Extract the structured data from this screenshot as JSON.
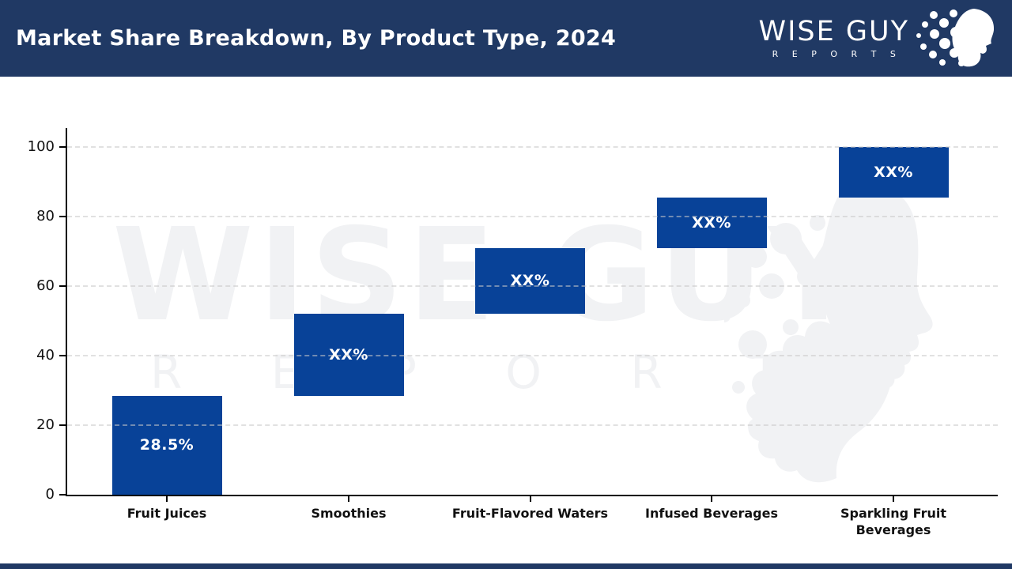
{
  "header": {
    "title": "Market Share Breakdown, By Product Type, 2024",
    "logo": {
      "line1": "WISE GUY",
      "line2": "R E P O R T S"
    }
  },
  "watermark": {
    "line1": "WISE GUY",
    "line2": "R E P O R T S"
  },
  "chart_data": {
    "type": "bar",
    "subtype": "waterfall",
    "title": "Market Share Breakdown, By Product Type, 2024",
    "categories": [
      "Fruit Juices",
      "Smoothies",
      "Fruit-Flavored Waters",
      "Infused Beverages",
      "Sparkling Fruit Beverages"
    ],
    "values": [
      28.5,
      23.5,
      19,
      14.5,
      14.5
    ],
    "segment_start": [
      0,
      28.5,
      52,
      71,
      85.5
    ],
    "segment_end": [
      28.5,
      52,
      71,
      85.5,
      100
    ],
    "bar_labels": [
      "28.5%",
      "XX%",
      "XX%",
      "XX%",
      "XX%"
    ],
    "y_ticks": [
      0,
      20,
      40,
      60,
      80,
      100
    ],
    "ylim": [
      0,
      105
    ],
    "xlabel": "",
    "ylabel": "",
    "grid": "horizontal-dashed",
    "legend": "none",
    "bar_color": "#084298"
  },
  "colors": {
    "header_bg": "#203964",
    "footer_bg": "#203964",
    "bar": "#084298",
    "bar_label_text": "#ffffff",
    "axis": "#000000",
    "gridline": "#d9d9d9",
    "watermark": "#f1f2f4",
    "title_text": "#ffffff"
  }
}
